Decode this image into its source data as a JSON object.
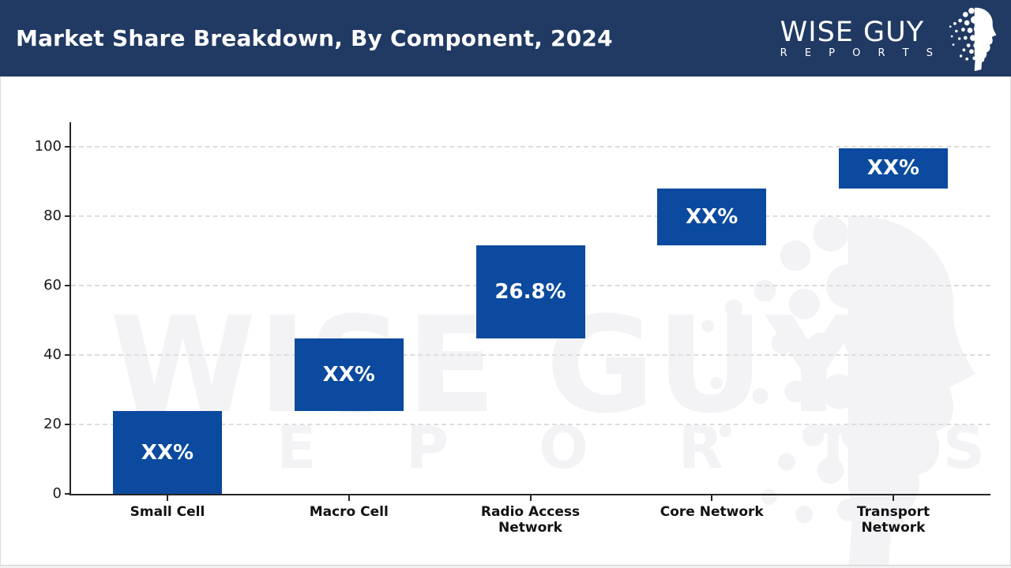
{
  "header": {
    "title": "Market Share Breakdown, By Component, 2024",
    "brand": {
      "line1": "WISE GUY",
      "line2": "R E P O R T S",
      "logo_icon": "dotted-head-profile"
    }
  },
  "watermark": {
    "line1": "WISE GUY",
    "line2": "R E P O R T S",
    "face_icon": "dotted-head-profile"
  },
  "colors": {
    "header_bg": "#213a63",
    "bar": "#0b4a9e",
    "bar_label": "#ffffff",
    "axis": "#262626",
    "grid": "#dcdcdc",
    "watermark": "#f3f3f6"
  },
  "chart_data": {
    "type": "bar",
    "subtype": "waterfall",
    "title": "Market Share Breakdown, By Component, 2024",
    "xlabel": "",
    "ylabel": "",
    "ylim": [
      0,
      100
    ],
    "yticks": [
      0,
      20,
      40,
      60,
      80,
      100
    ],
    "grid": "horizontal-dashed",
    "legend": "none",
    "categories": [
      "Small Cell",
      "Macro Cell",
      "Radio Access Network",
      "Core Network",
      "Transport Network"
    ],
    "segments": [
      {
        "category": "Small Cell",
        "start": 0,
        "end": 23.8,
        "value_label": "XX%"
      },
      {
        "category": "Macro Cell",
        "start": 23.8,
        "end": 44.8,
        "value_label": "XX%"
      },
      {
        "category": "Radio Access Network",
        "start": 44.8,
        "end": 71.6,
        "value_label": "26.8%"
      },
      {
        "category": "Core Network",
        "start": 71.6,
        "end": 87.9,
        "value_label": "XX%"
      },
      {
        "category": "Transport Network",
        "start": 87.9,
        "end": 99.6,
        "value_label": "XX%"
      }
    ]
  }
}
